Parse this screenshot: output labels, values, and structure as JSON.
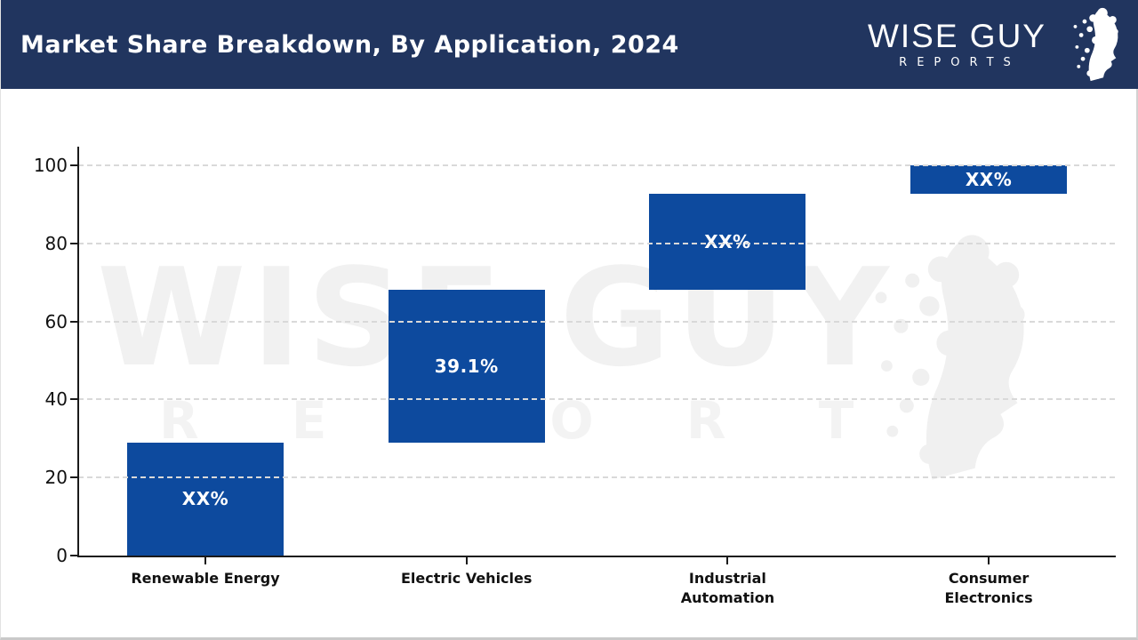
{
  "header": {
    "title": "Market Share Breakdown, By Application, 2024",
    "logo": {
      "line1": "WISE GUY",
      "line2": "REPORTS"
    }
  },
  "watermark": {
    "line1": "WISE GUY",
    "line2": "R E P O R T S"
  },
  "chart_data": {
    "type": "bar",
    "subtype": "waterfall",
    "title": "Market Share Breakdown, By Application, 2024",
    "categories": [
      "Renewable Energy",
      "Electric Vehicles",
      "Industrial\nAutomation",
      "Consumer\nElectronics"
    ],
    "segments": [
      {
        "category": "Renewable Energy",
        "start": 0,
        "end": 29,
        "value": 29.0,
        "value_label": "XX%"
      },
      {
        "category": "Electric Vehicles",
        "start": 29,
        "end": 68.1,
        "value": 39.1,
        "value_label": "39.1%"
      },
      {
        "category": "Industrial Automation",
        "start": 68.1,
        "end": 92.6,
        "value": 24.5,
        "value_label": "XX%"
      },
      {
        "category": "Consumer Electronics",
        "start": 92.6,
        "end": 100,
        "value": 7.4,
        "value_label": "XX%"
      }
    ],
    "xlabel": "",
    "ylabel": "",
    "ylim": [
      0,
      100
    ],
    "yticks": [
      0,
      20,
      40,
      60,
      80,
      100
    ],
    "grid": "horizontal-dashed",
    "legend": "none",
    "bar_color": "#0d4a9e"
  },
  "colors": {
    "header_bg": "#21355f",
    "bar": "#0d4a9e",
    "gridline": "#d9d9d9",
    "watermark": "#f1f1f1"
  }
}
